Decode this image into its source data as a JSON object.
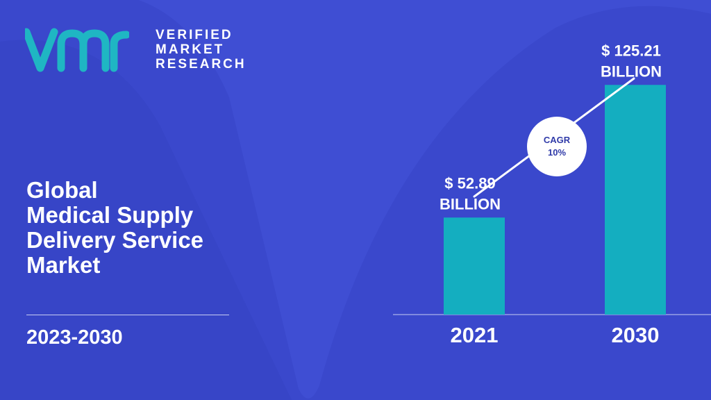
{
  "brand": {
    "logo_lines": [
      "VERIFIED",
      "MARKET",
      "RESEARCH"
    ]
  },
  "title_lines": [
    "Global",
    "Medical Supply",
    "Delivery Service",
    "Market"
  ],
  "forecast_period": "2023-2030",
  "colors": {
    "background": "#3a48cc",
    "bar": "#14aec0",
    "text": "#ffffff",
    "logo_accent": "#1fb6c3"
  },
  "chart_data": {
    "type": "bar",
    "categories": [
      "2021",
      "2030"
    ],
    "values": [
      52.89,
      125.21
    ],
    "value_labels": [
      [
        "$ 52.89",
        "BILLION"
      ],
      [
        "$ 125.21",
        "BILLION"
      ]
    ],
    "annotation": {
      "label": "CAGR",
      "value": "10%"
    },
    "title": "",
    "xlabel": "",
    "ylabel": "",
    "ylim": [
      0,
      145
    ]
  }
}
